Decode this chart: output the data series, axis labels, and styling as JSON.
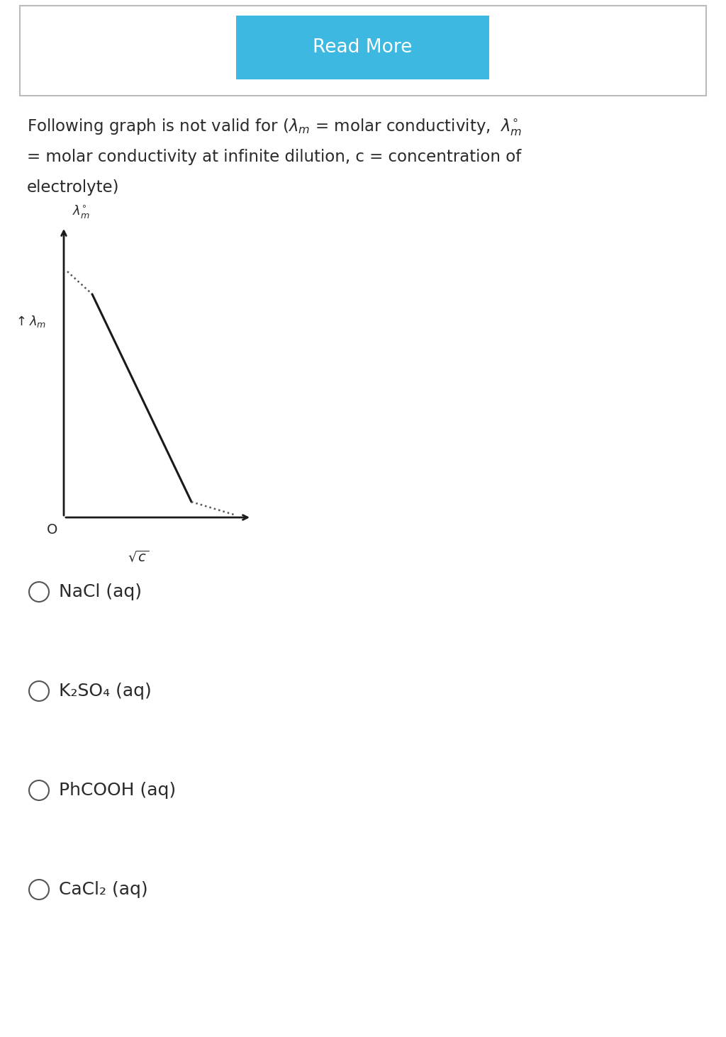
{
  "background_color": "#ffffff",
  "button_color": "#3db8e0",
  "button_text": "Read More",
  "button_text_color": "#ffffff",
  "button_fontsize": 19,
  "question_fontsize": 16.5,
  "options": [
    "NaCl (aq)",
    "K₂SO₄ (aq)",
    "PhCOOH (aq)",
    "CaCl₂ (aq)"
  ],
  "option_fontsize": 18,
  "circle_color": "#555555",
  "text_color": "#2a2a2a",
  "graph_line_color": "#1a1a1a",
  "graph_dotted_color": "#555555",
  "border_color": "#bbbbbb"
}
